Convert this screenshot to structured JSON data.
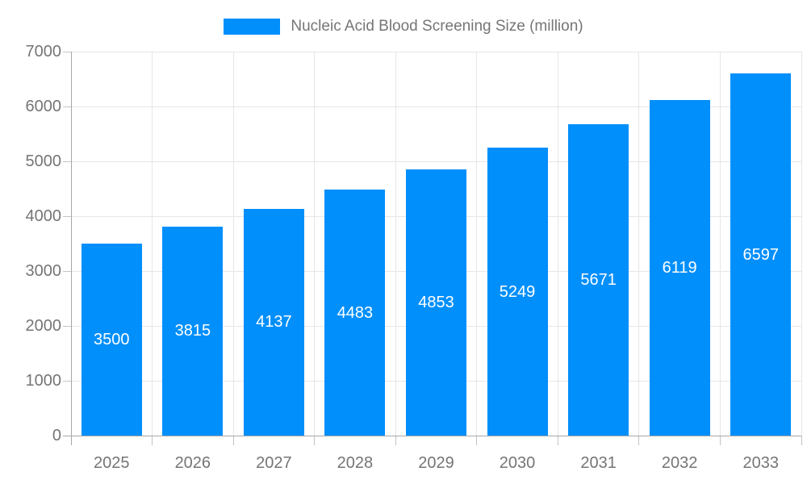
{
  "legend": {
    "label": "Nucleic Acid Blood Screening Size (million)",
    "swatch_color": "#008FFB"
  },
  "chart_data": {
    "type": "bar",
    "title": "Nucleic Acid Blood Screening Size (million)",
    "categories": [
      "2025",
      "2026",
      "2027",
      "2028",
      "2029",
      "2030",
      "2031",
      "2032",
      "2033"
    ],
    "values": [
      3500,
      3815,
      4137,
      4483,
      4853,
      5249,
      5671,
      6119,
      6597
    ],
    "value_labels": [
      "3500",
      "3815",
      "4137",
      "4483",
      "4853",
      "5249",
      "5671",
      "6119",
      "6597"
    ],
    "xlabel": "",
    "ylabel": "",
    "ylim": [
      0,
      7000
    ],
    "y_tick_step": 1000,
    "y_tick_labels": [
      "0",
      "1000",
      "2000",
      "3000",
      "4000",
      "5000",
      "6000",
      "7000"
    ],
    "grid": true,
    "legend_position": "top",
    "bar_color": "#008FFB",
    "value_label_color": "#ffffff",
    "axis_text_color": "#757575",
    "gridline_color": "#e6e6e6"
  }
}
